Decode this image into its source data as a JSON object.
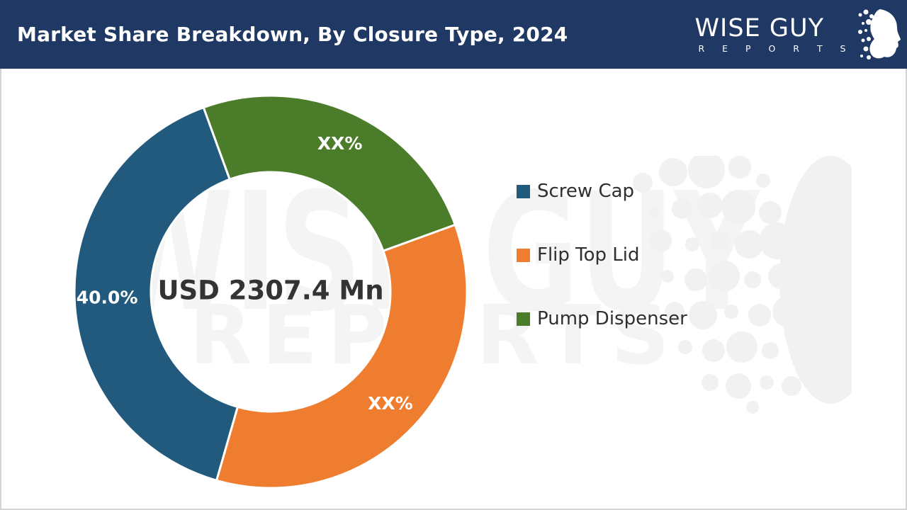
{
  "header": {
    "title": "Market Share Breakdown, By Closure Type, 2024",
    "logo": {
      "brand_line1": "WISE GUY",
      "brand_line2": "R E P O R T S"
    }
  },
  "watermark": {
    "line1": "WISE GUY",
    "line2": "REPORTS"
  },
  "colors": {
    "header_bg": "#1F3864",
    "center_text": "#333333",
    "legend_text": "#2F2F2F",
    "watermark": "#F4F4F4",
    "page_border": "#D4D4D4",
    "slice_separator": "#FFFFFF"
  },
  "chart_data": {
    "type": "pie",
    "subtype": "donut",
    "title": "Market Share Breakdown, By Closure Type, 2024",
    "center_label": "USD 2307.4 Mn",
    "start_angle_deg": 110,
    "direction": "counterclockwise",
    "legend_position": "right",
    "slices": [
      {
        "label": "Screw Cap",
        "value_pct": 40.0,
        "display_label": "40.0%",
        "color": "#215A7C"
      },
      {
        "label": "Flip Top Lid",
        "value_pct": 35.0,
        "display_label": "XX%",
        "color": "#EF7D2F"
      },
      {
        "label": "Pump Dispenser",
        "value_pct": 25.0,
        "display_label": "XX%",
        "color": "#4A7C2A"
      }
    ]
  }
}
